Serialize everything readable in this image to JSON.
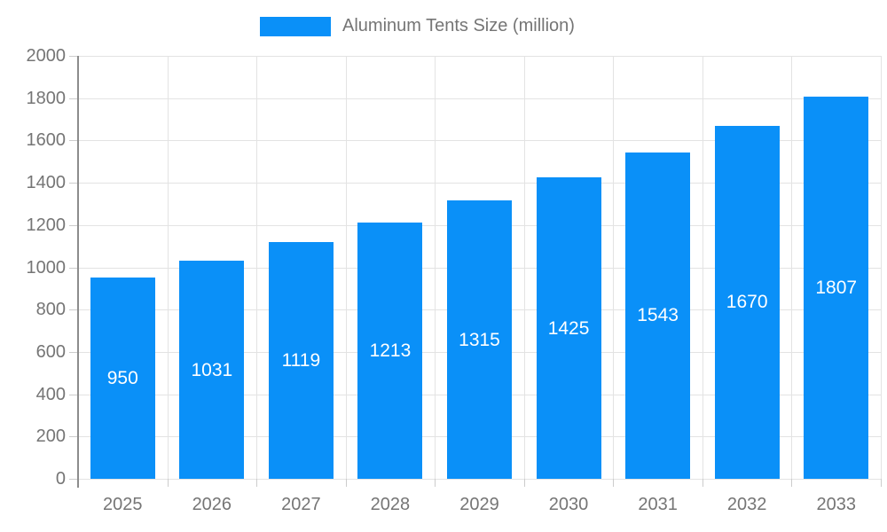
{
  "chart_data": {
    "type": "bar",
    "title": "Aluminum Tents Size (million)",
    "categories": [
      "2025",
      "2026",
      "2027",
      "2028",
      "2029",
      "2030",
      "2031",
      "2032",
      "2033"
    ],
    "values": [
      950,
      1031,
      1119,
      1213,
      1315,
      1425,
      1543,
      1670,
      1807
    ],
    "xlabel": "",
    "ylabel": "",
    "ylim": [
      0,
      2000
    ],
    "ytick_step": 200,
    "ytick_labels": [
      "0",
      "200",
      "400",
      "600",
      "800",
      "1000",
      "1200",
      "1400",
      "1600",
      "1800",
      "2000"
    ],
    "grid": true,
    "legend_position": "top-center",
    "bar_color": "#0a90f8",
    "bar_label_color": "#ffffff",
    "axis_line_color": "#8c8c8c",
    "grid_color": "#e3e3e3",
    "tick_color": "#cccccc",
    "text_color": "#757575",
    "background_color": "#ffffff"
  }
}
